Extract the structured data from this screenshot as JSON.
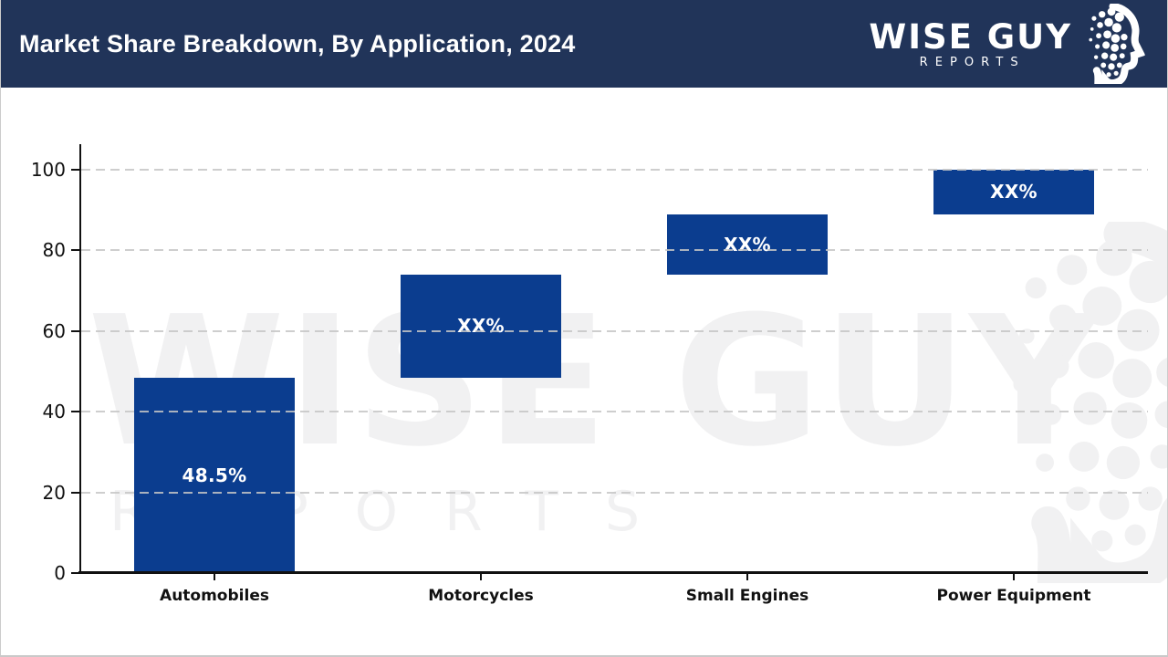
{
  "header": {
    "title": "Market Share Breakdown, By Application, 2024",
    "logo": {
      "primary": "WISE GUY",
      "secondary": "REPORTS"
    }
  },
  "watermark": {
    "primary": "WISE GUY",
    "secondary": "REPORTS"
  },
  "colors": {
    "header_bg": "#213459",
    "bar_blue": "#0b3d8f",
    "axis": "#111111",
    "gridline": "#d6d6d6",
    "bar_label": "#ffffff",
    "watermark": "#f1f1f2",
    "frame_border": "#cccccc"
  },
  "chart_data": {
    "type": "bar",
    "subtype": "waterfall-stacked-percent",
    "title": "Market Share Breakdown, By Application, 2024",
    "categories": [
      "Automobiles",
      "Motorcycles",
      "Small Engines",
      "Power Equipment"
    ],
    "segments": [
      {
        "category": "Automobiles",
        "start": 0,
        "end": 48.5,
        "label": "48.5%"
      },
      {
        "category": "Motorcycles",
        "start": 48.5,
        "end": 74,
        "label": "XX%"
      },
      {
        "category": "Small Engines",
        "start": 74,
        "end": 89,
        "label": "XX%"
      },
      {
        "category": "Power Equipment",
        "start": 89,
        "end": 100,
        "label": "XX%"
      }
    ],
    "yticks": [
      0,
      20,
      40,
      60,
      80,
      100
    ],
    "ylim": [
      0,
      106
    ],
    "xlabel": "",
    "ylabel": "",
    "grid": "horizontal-dashed-over-bars",
    "legend": "none"
  }
}
